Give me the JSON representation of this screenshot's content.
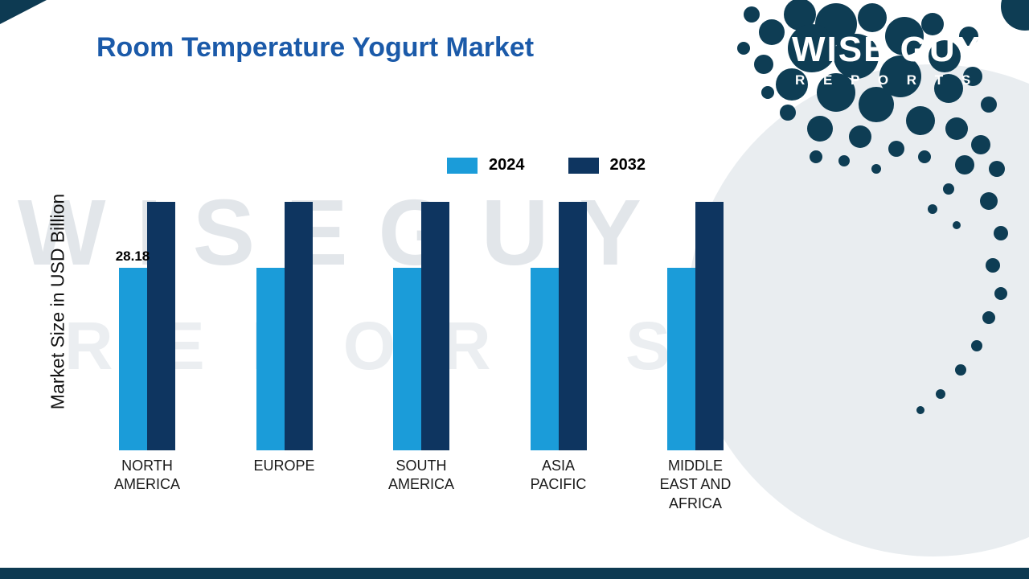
{
  "title": "Room Temperature Yogurt Market",
  "logo": {
    "name": "WISE GUY",
    "reports": "R E P O R T S"
  },
  "watermark": {
    "line1": "WISEGUY",
    "line2": "REPORTS"
  },
  "chart_data": {
    "type": "bar",
    "categories": [
      "NORTH AMERICA",
      "EUROPE",
      "SOUTH AMERICA",
      "ASIA PACIFIC",
      "MIDDLE EAST AND AFRICA"
    ],
    "series": [
      {
        "name": "2024",
        "color": "#1b9cd9",
        "values": [
          28.18,
          28.18,
          28.18,
          28.18,
          28.18
        ]
      },
      {
        "name": "2032",
        "color": "#0e3560",
        "values": [
          38.4,
          38.4,
          38.4,
          38.4,
          38.4
        ]
      }
    ],
    "title": "Room Temperature Yogurt Market",
    "xlabel": "",
    "ylabel": "Market Size in USD Billion",
    "ylim": [
      0,
      40
    ],
    "grid": false,
    "legend_position": "top-center",
    "bar_label": {
      "series": "2024",
      "category": "NORTH AMERICA",
      "text": "28.18"
    }
  },
  "colors": {
    "title_blue": "#1b5aa9",
    "bar_2024": "#1b9cd9",
    "bar_2032": "#0e3560",
    "accent_teal": "#0d3a52",
    "watermark_gray": "#e2e6ea"
  }
}
